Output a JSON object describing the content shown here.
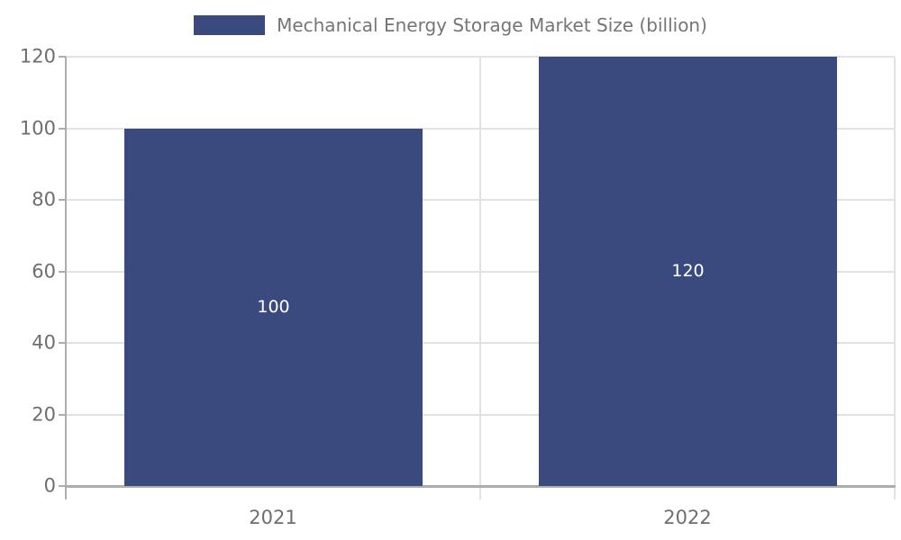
{
  "chart_data": {
    "type": "bar",
    "title": "Mechanical Energy Storage Market Size (billion)",
    "legend": "Mechanical Energy Storage Market Size (billion)",
    "legend_position": "top",
    "categories": [
      "2021",
      "2022"
    ],
    "series": [
      {
        "name": "Mechanical Energy Storage Market Size (billion)",
        "values": [
          100,
          120
        ],
        "bar_labels": [
          "100",
          "120"
        ]
      }
    ],
    "xlabel": "",
    "ylabel": "",
    "ylim": [
      0,
      120
    ],
    "yticks": [
      0,
      20,
      40,
      60,
      80,
      100,
      120
    ],
    "grid": true,
    "colors": {
      "bar": "#3A4A7E",
      "axis_line": "#ADADAD",
      "grid_line": "#E2E2E2",
      "tick_text": "#6E6E6E",
      "legend_text": "#757575",
      "bar_label_text": "#FFFFFF",
      "background": "#FFFFFF"
    }
  }
}
